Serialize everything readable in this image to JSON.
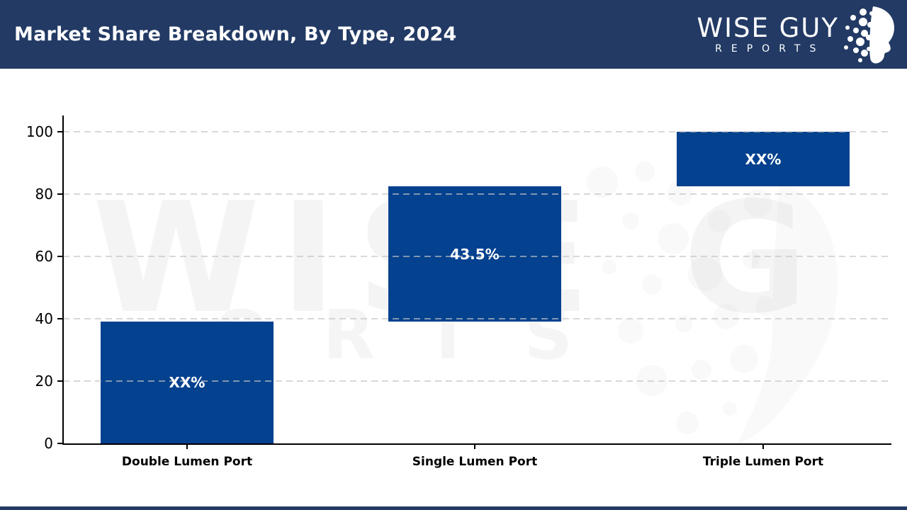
{
  "header": {
    "title": "Market Share Breakdown, By Type, 2024",
    "logo": {
      "line1": "WISE GUY",
      "line2": "REPORTS"
    }
  },
  "watermark": {
    "line1": "WISE G",
    "line2": "ORTS"
  },
  "chart_data": {
    "type": "bar",
    "subtype": "waterfall",
    "title": "Market Share Breakdown, By Type, 2024",
    "categories": [
      "Double Lumen Port",
      "Single Lumen Port",
      "Triple Lumen Port"
    ],
    "segments": [
      {
        "category": "Double Lumen Port",
        "start": 0,
        "end": 39,
        "label": "XX%"
      },
      {
        "category": "Single Lumen Port",
        "start": 39,
        "end": 82.5,
        "label": "43.5%"
      },
      {
        "category": "Triple Lumen Port",
        "start": 82.5,
        "end": 100,
        "label": "XX%"
      }
    ],
    "yticks": [
      0,
      20,
      40,
      60,
      80,
      100
    ],
    "ylim": [
      0,
      105
    ],
    "xlabel": "",
    "ylabel": "",
    "grid": "horizontal-dashed",
    "legend": "none",
    "bar_color": "#04418F",
    "bar_label_color": "#ffffff",
    "axis_color": "#000000"
  },
  "colors": {
    "header_bg": "#223A64",
    "footer_bg": "#223A64",
    "bar": "#04418F",
    "title_text": "#ffffff"
  }
}
